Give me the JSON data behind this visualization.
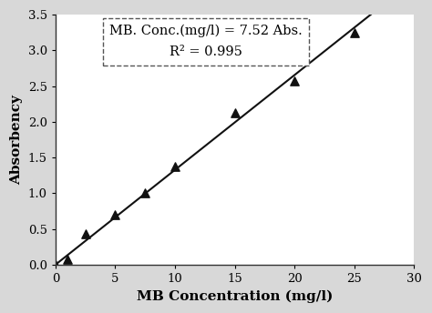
{
  "x_data": [
    0,
    1,
    2.5,
    5,
    7.5,
    10,
    15,
    20,
    25
  ],
  "y_data": [
    0,
    0.08,
    0.43,
    0.7,
    1.0,
    1.38,
    2.13,
    2.57,
    3.25
  ],
  "slope": 0.1328,
  "intercept": 0.0,
  "xlabel": "MB Concentration (mg/l)",
  "ylabel": "Absorbency",
  "xlim": [
    0,
    30
  ],
  "ylim": [
    0,
    3.5
  ],
  "xticks": [
    0,
    5,
    10,
    15,
    20,
    25,
    30
  ],
  "yticks": [
    0.0,
    0.5,
    1.0,
    1.5,
    2.0,
    2.5,
    3.0,
    3.5
  ],
  "annotation_line1": "MB. Conc.(mg/l) = 7.52 Abs.",
  "annotation_line2": "R² = 0.995",
  "marker_color": "#111111",
  "line_color": "#111111",
  "fig_bg_color": "#d8d8d8",
  "plot_bg_color": "#ffffff",
  "annotation_fontsize": 10.5,
  "axis_label_fontsize": 11,
  "tick_fontsize": 9.5,
  "figsize": [
    4.74,
    3.44
  ],
  "dpi": 100
}
